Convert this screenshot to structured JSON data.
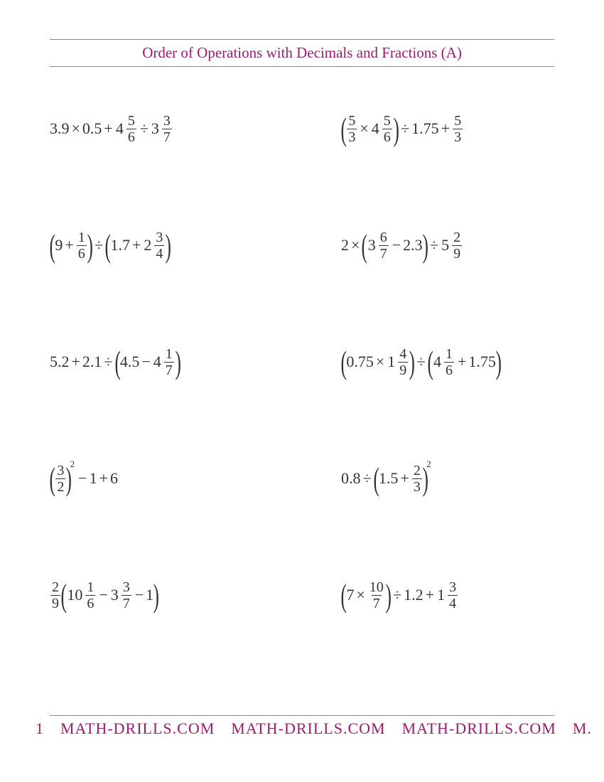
{
  "title_text": "Order of Operations with Decimals and Fractions (A)",
  "title_color": "#9b1c6f",
  "text_color": "#333333",
  "footer_text": "1 MATH-DRILLS.COM MATH-DRILLS.COM MATH-DRILLS.COM M.",
  "footer_color": "#9b1c6f",
  "font_family": "Times New Roman",
  "problem_fontsize": 22,
  "title_fontsize": 21,
  "footer_fontsize": 22,
  "problems": [
    {
      "position": "left",
      "tokens": [
        {
          "t": "text",
          "v": "3.9"
        },
        {
          "t": "op",
          "v": "×"
        },
        {
          "t": "text",
          "v": "0.5"
        },
        {
          "t": "op",
          "v": "+"
        },
        {
          "t": "mixed",
          "w": "4",
          "n": "5",
          "d": "6"
        },
        {
          "t": "op",
          "v": "÷"
        },
        {
          "t": "mixed",
          "w": "3",
          "n": "3",
          "d": "7"
        }
      ]
    },
    {
      "position": "right",
      "tokens": [
        {
          "t": "lparen"
        },
        {
          "t": "frac",
          "n": "5",
          "d": "3"
        },
        {
          "t": "op",
          "v": "×"
        },
        {
          "t": "mixed",
          "w": "4",
          "n": "5",
          "d": "6"
        },
        {
          "t": "rparen"
        },
        {
          "t": "op",
          "v": "÷"
        },
        {
          "t": "text",
          "v": "1.75"
        },
        {
          "t": "op",
          "v": "+"
        },
        {
          "t": "frac",
          "n": "5",
          "d": "3"
        }
      ]
    },
    {
      "position": "left",
      "tokens": [
        {
          "t": "lparen"
        },
        {
          "t": "text",
          "v": "9"
        },
        {
          "t": "op",
          "v": "+"
        },
        {
          "t": "frac",
          "n": "1",
          "d": "6"
        },
        {
          "t": "rparen"
        },
        {
          "t": "op",
          "v": "÷"
        },
        {
          "t": "lparen"
        },
        {
          "t": "text",
          "v": "1.7"
        },
        {
          "t": "op",
          "v": "+"
        },
        {
          "t": "mixed",
          "w": "2",
          "n": "3",
          "d": "4"
        },
        {
          "t": "rparen"
        }
      ]
    },
    {
      "position": "right",
      "tokens": [
        {
          "t": "text",
          "v": "2"
        },
        {
          "t": "op",
          "v": "×"
        },
        {
          "t": "lparen"
        },
        {
          "t": "mixed",
          "w": "3",
          "n": "6",
          "d": "7"
        },
        {
          "t": "op",
          "v": "−"
        },
        {
          "t": "text",
          "v": "2.3"
        },
        {
          "t": "rparen"
        },
        {
          "t": "op",
          "v": "÷"
        },
        {
          "t": "mixed",
          "w": "5",
          "n": "2",
          "d": "9"
        }
      ]
    },
    {
      "position": "left",
      "tokens": [
        {
          "t": "text",
          "v": "5.2"
        },
        {
          "t": "op",
          "v": "+"
        },
        {
          "t": "text",
          "v": "2.1"
        },
        {
          "t": "op",
          "v": "÷"
        },
        {
          "t": "lparen"
        },
        {
          "t": "text",
          "v": "4.5"
        },
        {
          "t": "op",
          "v": "−"
        },
        {
          "t": "mixed",
          "w": "4",
          "n": "1",
          "d": "7"
        },
        {
          "t": "rparen"
        }
      ]
    },
    {
      "position": "right",
      "tokens": [
        {
          "t": "lparen"
        },
        {
          "t": "text",
          "v": "0.75"
        },
        {
          "t": "op",
          "v": "×"
        },
        {
          "t": "mixed",
          "w": "1",
          "n": "4",
          "d": "9"
        },
        {
          "t": "rparen"
        },
        {
          "t": "op",
          "v": "÷"
        },
        {
          "t": "lparen"
        },
        {
          "t": "mixed",
          "w": "4",
          "n": "1",
          "d": "6"
        },
        {
          "t": "op",
          "v": "+"
        },
        {
          "t": "text",
          "v": "1.75"
        },
        {
          "t": "rparen"
        }
      ]
    },
    {
      "position": "left",
      "tokens": [
        {
          "t": "lparen"
        },
        {
          "t": "frac",
          "n": "3",
          "d": "2"
        },
        {
          "t": "rparen"
        },
        {
          "t": "sup",
          "v": "2"
        },
        {
          "t": "op",
          "v": "−"
        },
        {
          "t": "text",
          "v": "1"
        },
        {
          "t": "op",
          "v": "+"
        },
        {
          "t": "text",
          "v": "6"
        }
      ]
    },
    {
      "position": "right",
      "tokens": [
        {
          "t": "text",
          "v": "0.8"
        },
        {
          "t": "op",
          "v": "÷"
        },
        {
          "t": "lparen"
        },
        {
          "t": "text",
          "v": "1.5"
        },
        {
          "t": "op",
          "v": "+"
        },
        {
          "t": "frac",
          "n": "2",
          "d": "3"
        },
        {
          "t": "rparen"
        },
        {
          "t": "sup",
          "v": "2"
        }
      ]
    },
    {
      "position": "left",
      "tokens": [
        {
          "t": "frac",
          "n": "2",
          "d": "9"
        },
        {
          "t": "lparen"
        },
        {
          "t": "mixed",
          "w": "10",
          "n": "1",
          "d": "6"
        },
        {
          "t": "op",
          "v": "−"
        },
        {
          "t": "mixed",
          "w": "3",
          "n": "3",
          "d": "7"
        },
        {
          "t": "op",
          "v": "−"
        },
        {
          "t": "text",
          "v": "1"
        },
        {
          "t": "rparen"
        }
      ]
    },
    {
      "position": "right",
      "tokens": [
        {
          "t": "lparen"
        },
        {
          "t": "text",
          "v": "7"
        },
        {
          "t": "op",
          "v": "×"
        },
        {
          "t": "frac",
          "n": "10",
          "d": "7"
        },
        {
          "t": "rparen"
        },
        {
          "t": "op",
          "v": "÷"
        },
        {
          "t": "text",
          "v": "1.2"
        },
        {
          "t": "op",
          "v": "+"
        },
        {
          "t": "mixed",
          "w": "1",
          "n": "3",
          "d": "4"
        }
      ]
    }
  ]
}
